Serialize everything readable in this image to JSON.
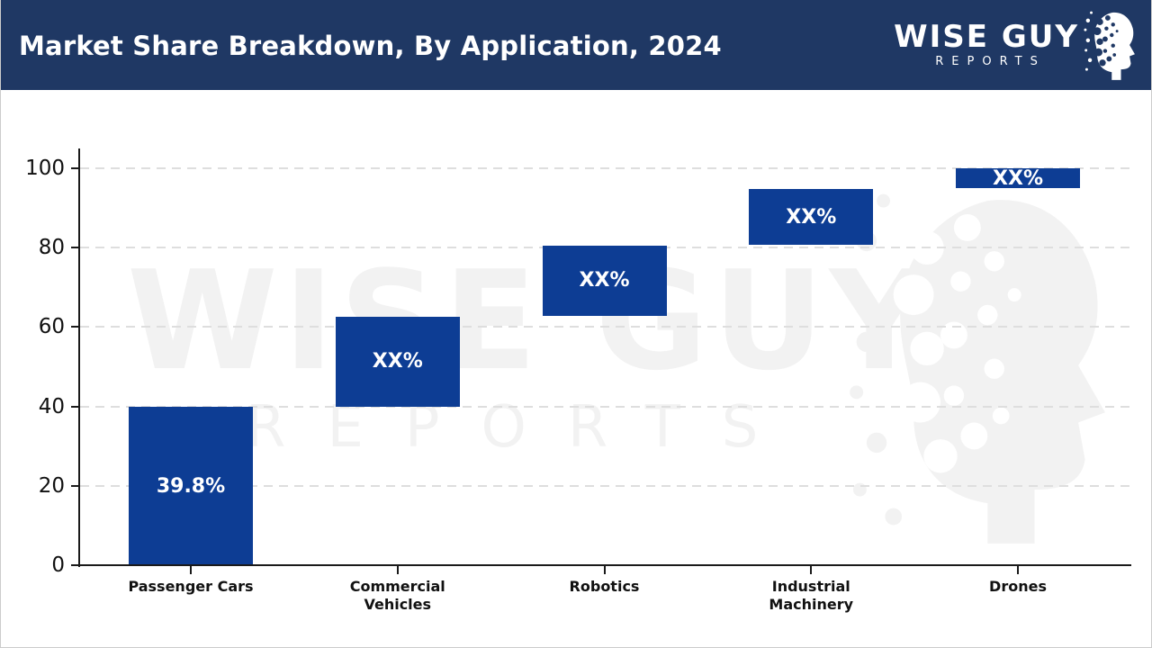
{
  "header": {
    "title": "Market Share Breakdown, By Application, 2024",
    "logo": {
      "line1": "WISE GUY",
      "line2": "REPORTS"
    }
  },
  "watermark": {
    "line1": "WISE GUY",
    "line2": "REPORTS"
  },
  "colors": {
    "header_bg": "#1F3864",
    "bar": "#0D3D94",
    "bar_label": "#FFFFFF",
    "axis": "#1A1A1A",
    "gridline": "#DEDEDE",
    "tick_label": "#111111",
    "watermark": "#F2F2F2",
    "page_border": "#CCCCCC"
  },
  "chart_data": {
    "type": "bar",
    "subtype": "waterfall",
    "title": "Market Share Breakdown, By Application, 2024",
    "xlabel": "",
    "ylabel": "",
    "ylim": [
      0,
      100
    ],
    "yticks": [
      0,
      20,
      40,
      60,
      80,
      100
    ],
    "grid": "horizontal dashed",
    "legend": "none",
    "categories": [
      "Passenger Cars",
      "Commercial\nVehicles",
      "Robotics",
      "Industrial\nMachinery",
      "Drones"
    ],
    "segments": [
      {
        "category": "Passenger Cars",
        "label": "39.8%",
        "start": 0,
        "end": 39.8
      },
      {
        "category": "Commercial\nVehicles",
        "label": "XX%",
        "start": 40.0,
        "end": 62.6
      },
      {
        "category": "Robotics",
        "label": "XX%",
        "start": 62.8,
        "end": 80.6
      },
      {
        "category": "Industrial\nMachinery",
        "label": "XX%",
        "start": 80.8,
        "end": 94.7
      },
      {
        "category": "Drones",
        "label": "XX%",
        "start": 94.9,
        "end": 100.0
      }
    ]
  }
}
